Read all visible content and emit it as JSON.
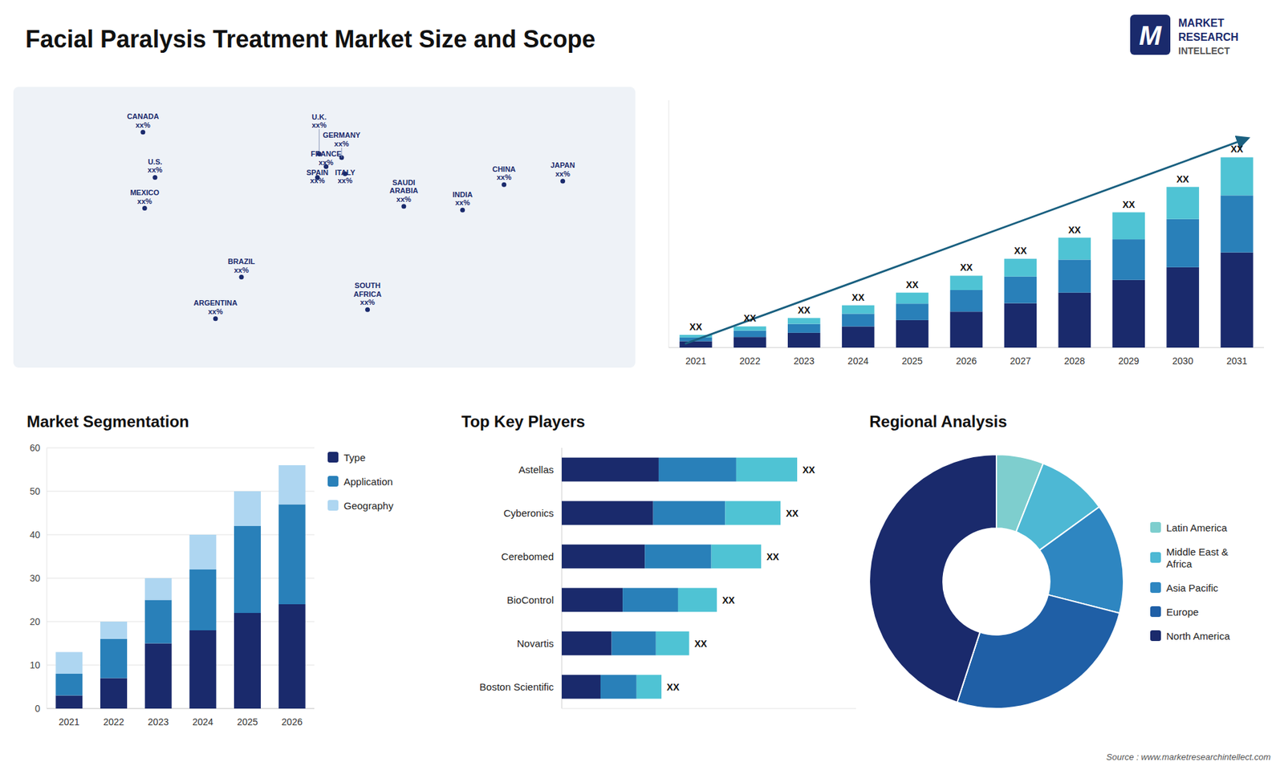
{
  "title": "Facial Paralysis Treatment Market Size and Scope",
  "annotations": [
    "M",
    "MARKET",
    "RESEARCH",
    "INTELLECT",
    "Source : www.marketresearchintellect.com"
  ],
  "chart_data": [
    {
      "type": "map",
      "annotations": [
        "CANADA\nxx%",
        "U.S.\nxx%",
        "MEXICO\nxx%",
        "BRAZIL\nxx%",
        "ARGENTINA\nxx%",
        "U.K.\nxx%",
        "FRANCE\nxx%",
        "SPAIN\nxx%",
        "GERMANY\nxx%",
        "ITALY\nxx%",
        "SAUDI\nARABIA\nxx%",
        "SOUTH\nAFRICA\nxx%",
        "CHINA\nxx%",
        "INDIA\nxx%",
        "JAPAN\nxx%"
      ],
      "x": [
        -105,
        -98,
        -104,
        -48,
        -63,
        -3,
        1,
        -4,
        10,
        12,
        46,
        25,
        104,
        80,
        138
      ],
      "values": [
        65,
        40,
        23,
        -15,
        -38,
        53,
        46,
        40,
        51,
        42,
        24,
        -33,
        36,
        22,
        38
      ],
      "xlim": [
        -180,
        180
      ],
      "ylim": [
        -65,
        90
      ],
      "color": "#1a2a6c",
      "tick_labels": false
    },
    {
      "type": "bar",
      "stacked": true,
      "categories": [
        "2021",
        "2022",
        "2023",
        "2024",
        "2025",
        "2026",
        "2027",
        "2028",
        "2029",
        "2030",
        "2031"
      ],
      "series": [
        {
          "color": "#1a2a6c",
          "values": [
            1.5,
            2.5,
            3.5,
            5,
            6.5,
            8.5,
            10.5,
            13,
            16,
            19,
            22.5
          ]
        },
        {
          "color": "#2980b9",
          "values": [
            0.9,
            1.5,
            2.1,
            3,
            3.9,
            5.1,
            6.3,
            7.8,
            9.6,
            11.4,
            13.5
          ]
        },
        {
          "color": "#4fc3d4",
          "values": [
            0.6,
            1,
            1.4,
            2,
            2.6,
            3.4,
            4.2,
            5.2,
            6.4,
            7.6,
            9
          ]
        }
      ],
      "ylim": [
        0,
        58.5
      ],
      "tick_labels": "x",
      "annotations": [
        "XX",
        "XX",
        "XX",
        "XX",
        "XX",
        "XX",
        "XX",
        "XX",
        "XX",
        "XX",
        "XX"
      ]
    },
    {
      "type": "bar",
      "stacked": true,
      "title": "Market Segmentation",
      "categories": [
        "2021",
        "2022",
        "2023",
        "2024",
        "2025",
        "2026"
      ],
      "series": [
        {
          "name": "Type",
          "color": "#1a2a6c",
          "values": [
            3,
            7,
            15,
            18,
            22,
            24
          ]
        },
        {
          "name": "Application",
          "color": "#2980b9",
          "values": [
            5,
            9,
            10,
            14,
            20,
            23
          ]
        },
        {
          "name": "Geography",
          "color": "#aed6f1",
          "values": [
            5,
            4,
            5,
            8,
            8,
            9
          ]
        }
      ],
      "ylim": [
        0,
        60
      ],
      "yticks": [
        0,
        10,
        20,
        30,
        40,
        50,
        60
      ],
      "grid": true,
      "legend": "right"
    },
    {
      "type": "bar",
      "orientation": "horizontal",
      "stacked": true,
      "title": "Top Key Players",
      "categories": [
        "Astellas",
        "Cyberonics",
        "Cerebomed",
        "BioControl",
        "Novartis",
        "Boston Scientific"
      ],
      "series": [
        {
          "color": "#1a2a6c",
          "values": [
            35,
            33,
            30,
            22,
            18,
            14
          ]
        },
        {
          "color": "#2980b9",
          "values": [
            28,
            26,
            24,
            20,
            16,
            13
          ]
        },
        {
          "color": "#4fc3d4",
          "values": [
            22,
            20,
            18,
            14,
            12,
            9
          ]
        }
      ],
      "xlim": [
        0,
        106.25
      ],
      "tick_labels": "y",
      "annotations": [
        "XX",
        "XX",
        "XX",
        "XX",
        "XX",
        "XX"
      ]
    },
    {
      "type": "pie",
      "title": "Regional Analysis",
      "categories": [
        "Latin America",
        "Middle East &\nAfrica",
        "Asia Pacific",
        "Europe",
        "North America"
      ],
      "values": [
        6,
        9,
        14,
        26,
        45
      ],
      "colors": [
        "#7ecece",
        "#4db8d4",
        "#2e86c1",
        "#1f5fa6",
        "#1a2a6c"
      ],
      "legend": "right"
    }
  ]
}
